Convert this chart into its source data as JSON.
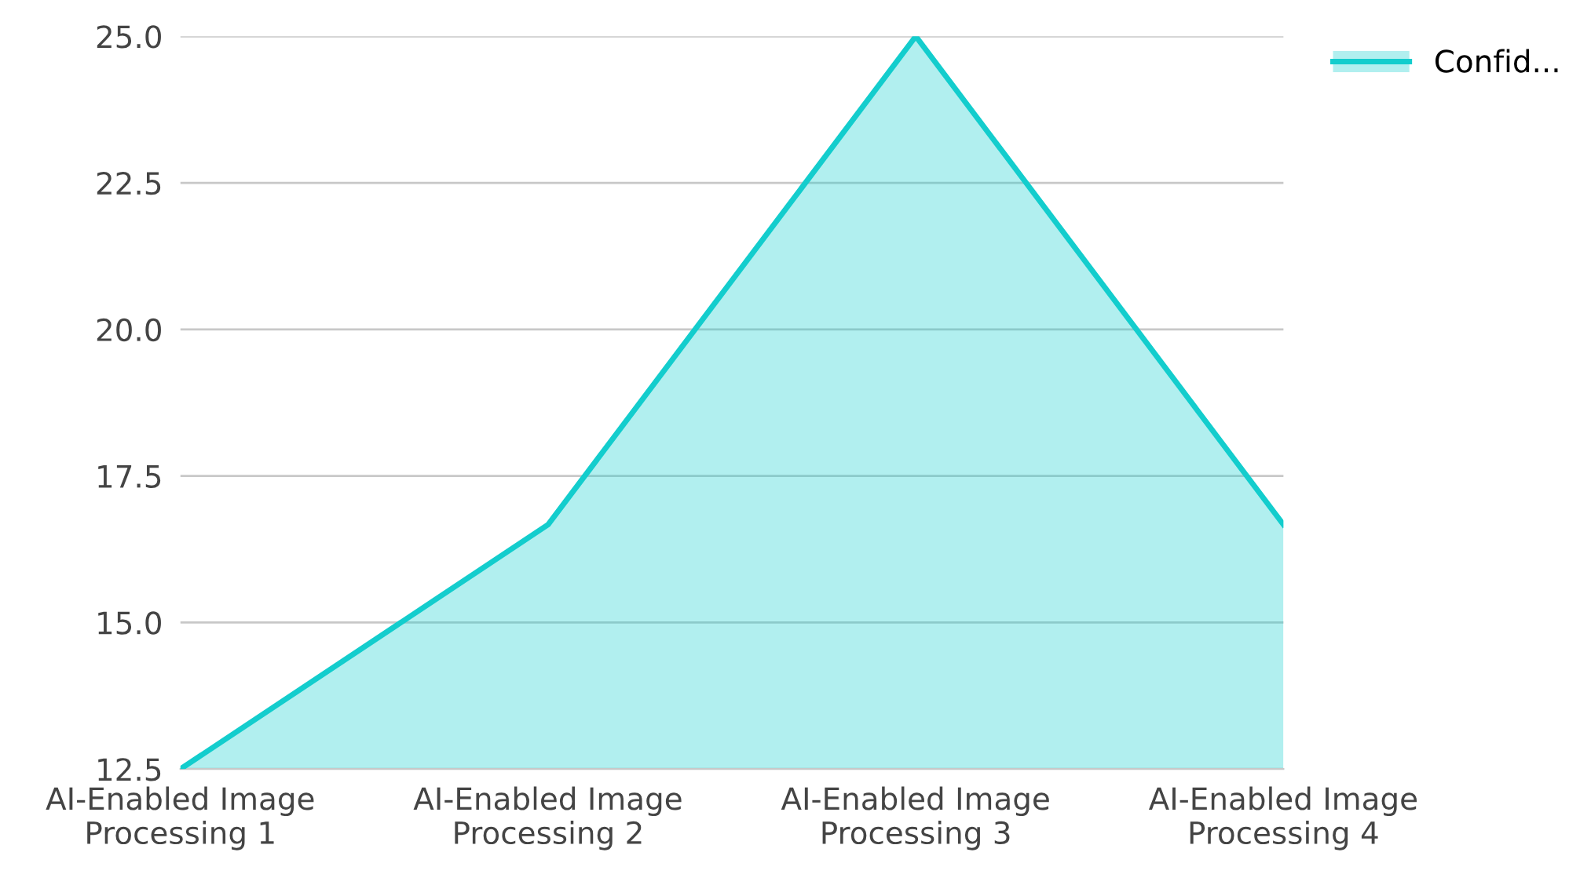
{
  "chart_data": {
    "type": "area",
    "categories": [
      "AI-Enabled Image\nProcessing 1",
      "AI-Enabled Image\nProcessing 2",
      "AI-Enabled Image\nProcessing 3",
      "AI-Enabled Image\nProcessing 4"
    ],
    "series": [
      {
        "name": "Confid...",
        "color": "#13cdcd",
        "values": [
          12.5,
          16.67,
          25.0,
          16.67
        ]
      }
    ],
    "ylim": [
      12.5,
      25.0
    ],
    "yticks": [
      12.5,
      {
        "value": 15,
        "label": "15.0"
      },
      17.5,
      {
        "value": 20,
        "label": "20.0"
      },
      22.5,
      {
        "value": 25,
        "label": "25.0"
      }
    ],
    "grid": "y",
    "legend": "top right",
    "line_style": "solid",
    "marker": "none"
  }
}
